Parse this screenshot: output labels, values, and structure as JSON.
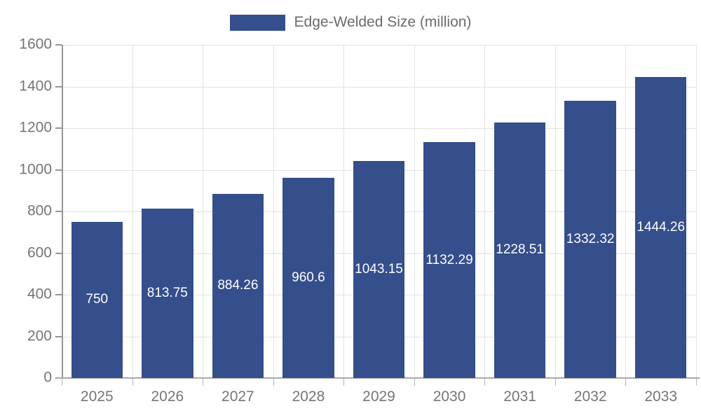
{
  "legend": {
    "items": [
      {
        "label": "Edge-Welded Size (million)",
        "color": "#354e8c"
      }
    ]
  },
  "chart_data": {
    "type": "bar",
    "title": "",
    "categories": [
      "2025",
      "2026",
      "2027",
      "2028",
      "2029",
      "2030",
      "2031",
      "2032",
      "2033"
    ],
    "series": [
      {
        "name": "Edge-Welded Size (million)",
        "color": "#354e8c",
        "values": [
          750,
          813.75,
          884.26,
          960.6,
          1043.15,
          1132.29,
          1228.51,
          1332.32,
          1444.26
        ],
        "labels": [
          "750",
          "813.75",
          "884.26",
          "960.6",
          "1043.15",
          "1132.29",
          "1228.51",
          "1332.32",
          "1444.26"
        ]
      }
    ],
    "xlabel": "",
    "ylabel": "",
    "ylim": [
      0,
      1600
    ],
    "ytick_step": 200,
    "yticks": [
      "0",
      "200",
      "400",
      "600",
      "800",
      "1000",
      "1200",
      "1400",
      "1600"
    ],
    "grid": true,
    "legend_position": "top-center",
    "bar_label_position": "inside-center",
    "bar_label_color": "#ffffff",
    "axis_color": "#949494",
    "grid_color": "#e2e2e2",
    "tick_label_color": "#757575"
  }
}
